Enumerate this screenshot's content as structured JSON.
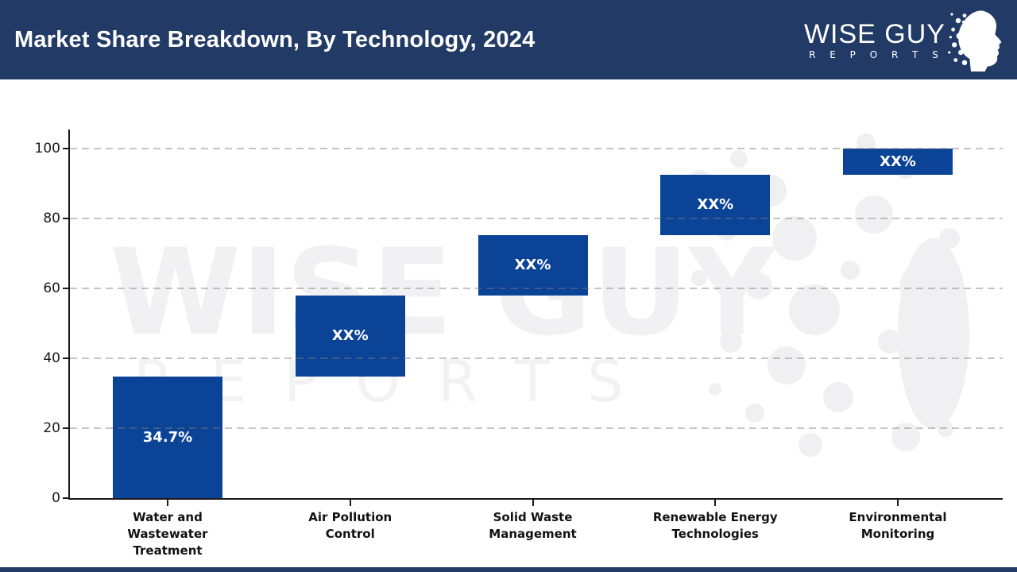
{
  "header": {
    "title": "Market Share Breakdown, By Technology, 2024",
    "bg_color": "#223a66"
  },
  "logo": {
    "name": "WISE GUY",
    "subtitle": "R E P O R T S"
  },
  "watermark": {
    "line1": "WISE GUY",
    "line2": "R E P O R T S"
  },
  "chart_data": {
    "type": "bar",
    "subtype": "waterfall-segmented",
    "title": "Market Share Breakdown, By Technology, 2024",
    "xlabel": "",
    "ylabel": "",
    "ylim": [
      0,
      105
    ],
    "yticks": [
      0,
      20,
      40,
      60,
      80,
      100
    ],
    "grid": "horizontal-dashed",
    "legend": "none",
    "bar_color": "#0b4397",
    "label_color": "#ffffff",
    "bars": [
      {
        "category": "Water and Wastewater Treatment",
        "lines": [
          "Water and",
          "Wastewater",
          "Treatment"
        ],
        "start": 0,
        "end": 34.7,
        "value": 34.7,
        "label": "34.7%"
      },
      {
        "category": "Air Pollution Control",
        "lines": [
          "Air Pollution",
          "Control"
        ],
        "start": 34.7,
        "end": 58.0,
        "value": 23.3,
        "label": "XX%"
      },
      {
        "category": "Solid Waste Management",
        "lines": [
          "Solid Waste",
          "Management"
        ],
        "start": 58.0,
        "end": 75.3,
        "value": 17.3,
        "label": "XX%"
      },
      {
        "category": "Renewable Energy Technologies",
        "lines": [
          "Renewable Energy",
          "Technologies"
        ],
        "start": 75.3,
        "end": 92.5,
        "value": 17.2,
        "label": "XX%"
      },
      {
        "category": "Environmental Monitoring",
        "lines": [
          "Environmental",
          "Monitoring"
        ],
        "start": 92.5,
        "end": 100.0,
        "value": 7.5,
        "label": "XX%"
      }
    ]
  }
}
